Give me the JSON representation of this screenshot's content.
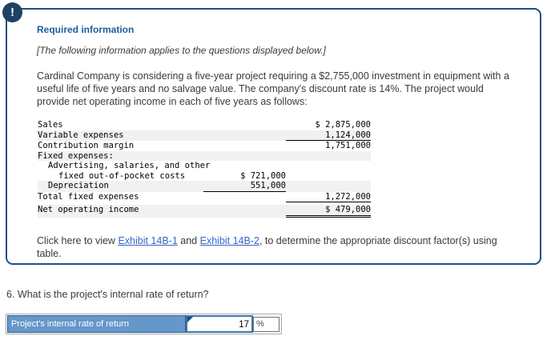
{
  "alert": {
    "glyph": "!"
  },
  "colors": {
    "panel_border": "#20507f",
    "alert_bg": "#1d4263",
    "heading_blue": "#1d5d9e",
    "link_blue": "#3566c8",
    "row_shade": "#f1f1f1",
    "answer_label_bg": "#6597ca",
    "answer_label_border": "#2d608f",
    "input_border": "#3d74a9"
  },
  "info_box": {
    "heading": "Required information",
    "note": "[The following information applies to the questions displayed below.]",
    "paragraph": "Cardinal Company is considering a five-year project requiring a $2,755,000 investment in equipment with a useful life of five years and no salvage value. The company's discount rate is 14%. The project would provide net operating income in each of five years as follows:",
    "statement_rows": [
      {
        "label": "Sales",
        "indent": 0,
        "mid": "",
        "right": "$ 2,875,000",
        "shaded": false,
        "mid_rule": "none",
        "right_rule": "none",
        "spaced": false
      },
      {
        "label": "Variable expenses",
        "indent": 0,
        "mid": "",
        "right": "1,124,000",
        "shaded": true,
        "mid_rule": "none",
        "right_rule": "single",
        "spaced": false
      },
      {
        "label": "Contribution margin",
        "indent": 0,
        "mid": "",
        "right": "1,751,000",
        "shaded": false,
        "mid_rule": "none",
        "right_rule": "none",
        "spaced": false
      },
      {
        "label": "Fixed expenses:",
        "indent": 0,
        "mid": "",
        "right": "",
        "shaded": true,
        "mid_rule": "none",
        "right_rule": "none",
        "spaced": false
      },
      {
        "label": "Advertising, salaries, and other",
        "indent": 1,
        "mid": "",
        "right": "",
        "shaded": false,
        "mid_rule": "none",
        "right_rule": "none",
        "spaced": false
      },
      {
        "label": "fixed out-of-pocket costs",
        "indent": 2,
        "mid": "$ 721,000",
        "right": "",
        "shaded": false,
        "mid_rule": "none",
        "right_rule": "none",
        "spaced": false
      },
      {
        "label": "Depreciation",
        "indent": 1,
        "mid": "551,000",
        "right": "",
        "shaded": true,
        "mid_rule": "single",
        "right_rule": "none",
        "spaced": false
      },
      {
        "label": "Total fixed expenses",
        "indent": 0,
        "mid": "",
        "right": "1,272,000",
        "shaded": false,
        "mid_rule": "none",
        "right_rule": "single",
        "spaced": false
      },
      {
        "label": "Net operating income",
        "indent": 0,
        "mid": "",
        "right": "$ 479,000",
        "shaded": true,
        "mid_rule": "none",
        "right_rule": "double",
        "spaced": true
      }
    ],
    "exhibit_line": {
      "prefix": "Click here to view ",
      "link1": "Exhibit 14B-1",
      "middle": " and ",
      "link2": "Exhibit 14B-2",
      "suffix": ", to determine the appropriate discount factor(s) using table."
    }
  },
  "question": {
    "text": "6. What is the project's internal rate of return?"
  },
  "answer": {
    "label": "Project's internal rate of return",
    "value": "17",
    "unit": "%"
  }
}
